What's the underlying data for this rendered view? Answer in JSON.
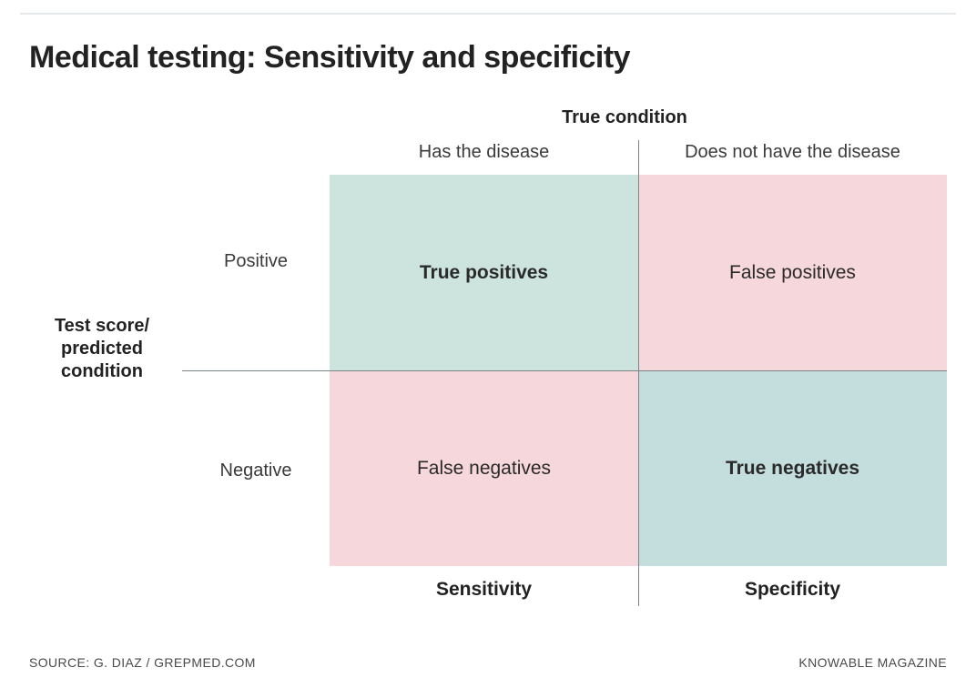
{
  "title": "Medical testing: Sensitivity and specificity",
  "axis_top": "True condition",
  "axis_left": "Test score/\npredicted condition",
  "col_headers": [
    "Has the disease",
    "Does not have the disease"
  ],
  "row_labels": [
    "Positive",
    "Negative"
  ],
  "matrix": {
    "type": "confusion-matrix",
    "cells": [
      {
        "key": "tp",
        "label": "True positives",
        "row": 0,
        "col": 0,
        "bold": true,
        "fill": "#cde4de"
      },
      {
        "key": "fp",
        "label": "False positives",
        "row": 0,
        "col": 1,
        "bold": false,
        "fill": "#f6d7db"
      },
      {
        "key": "fn",
        "label": "False negatives",
        "row": 1,
        "col": 0,
        "bold": false,
        "fill": "#f6d7db"
      },
      {
        "key": "tn",
        "label": "True negatives",
        "row": 1,
        "col": 1,
        "bold": true,
        "fill": "#c4dedd"
      }
    ],
    "bottom_labels": [
      "Sensitivity",
      "Specificity"
    ],
    "line_color": "#7c8488",
    "background_color": "#ffffff",
    "title_fontsize": 34,
    "label_fontsize": 20,
    "cell_fontsize": 21,
    "rule_color": "#e4e8ea"
  },
  "footer": {
    "source_prefix": "SOURCE: ",
    "source": "G. DIAZ / GREPMED.COM",
    "publication": "KNOWABLE MAGAZINE"
  }
}
